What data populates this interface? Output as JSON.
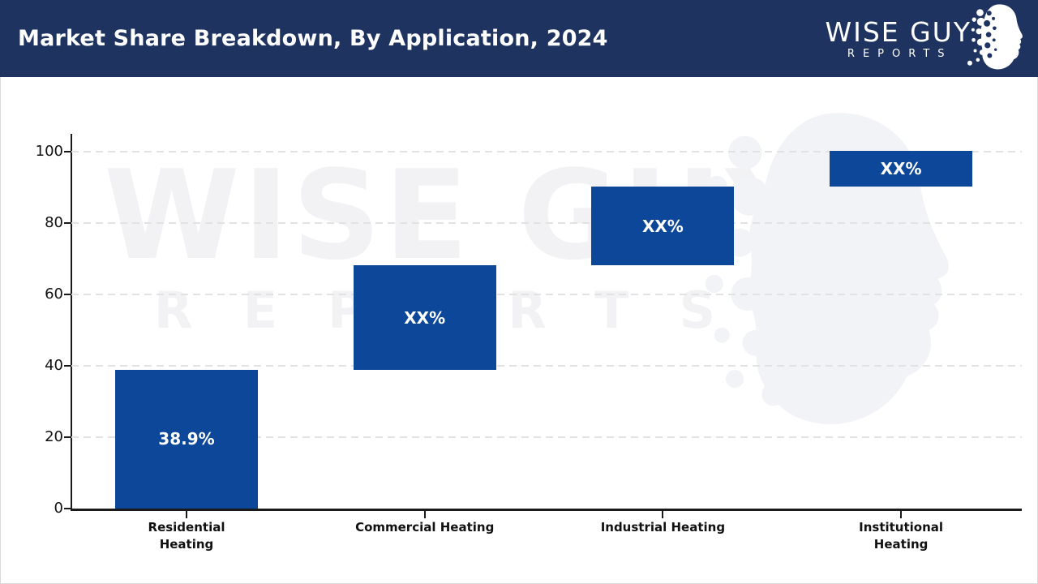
{
  "header": {
    "title": "Market Share Breakdown, By Application, 2024",
    "brand": {
      "top": "WISE GUY",
      "bottom": "REPORTS"
    }
  },
  "watermark": {
    "top": "WISE GUY",
    "bottom": "REPORTS"
  },
  "colors": {
    "header_bg": "#1f3361",
    "bar": "#0d4799",
    "grid": "#e2e2e2",
    "axis": "#1a1a1a",
    "watermark": "#f2f2f5"
  },
  "chart_data": {
    "type": "bar",
    "subtype": "waterfall",
    "title": "Market Share Breakdown, By Application, 2024",
    "categories": [
      "Residential\nHeating",
      "Commercial Heating",
      "Industrial Heating",
      "Institutional\nHeating"
    ],
    "series": [
      {
        "name": "Market Share",
        "segments": [
          {
            "category": "Residential Heating",
            "start": 0,
            "end": 38.9,
            "label": "38.9%"
          },
          {
            "category": "Commercial Heating",
            "start": 38.9,
            "end": 68.1,
            "label": "XX%"
          },
          {
            "category": "Industrial Heating",
            "start": 68.1,
            "end": 90.3,
            "label": "XX%"
          },
          {
            "category": "Institutional Heating",
            "start": 90.3,
            "end": 100.2,
            "label": "XX%"
          }
        ]
      }
    ],
    "xlabel": "",
    "ylabel": "",
    "ylim": [
      0,
      105
    ],
    "yticks": [
      0,
      20,
      40,
      60,
      80,
      100
    ],
    "grid": "horizontal-dashed",
    "legend": "none",
    "bar_color": "#0d4799",
    "bar_label_color": "#ffffff"
  }
}
